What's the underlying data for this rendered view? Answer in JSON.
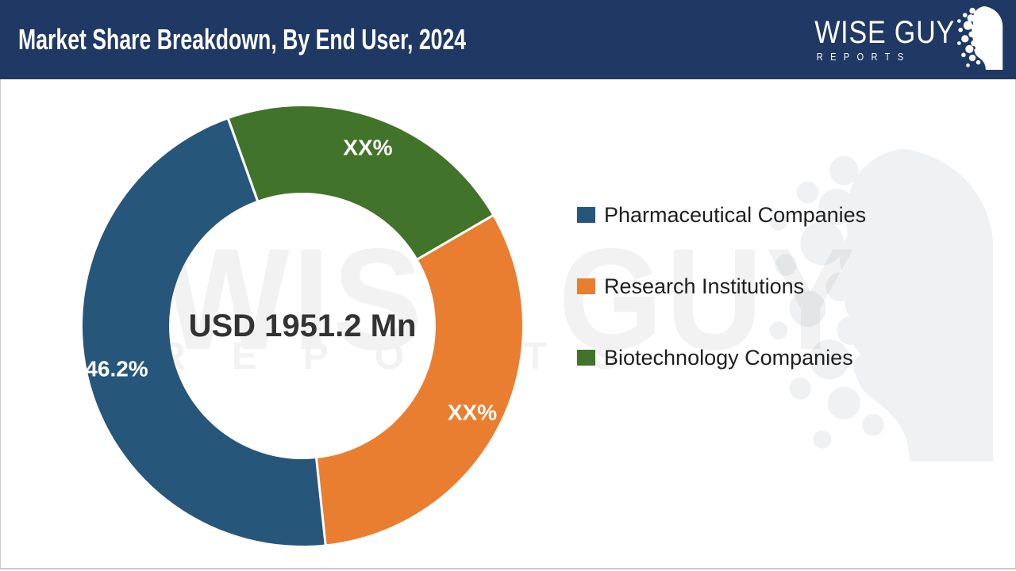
{
  "header": {
    "title": "Market Share Breakdown, By End User, 2024"
  },
  "logo": {
    "line1": "WISE GUY",
    "line2": "REPORTS"
  },
  "watermark": {
    "line1": "WISE GUY",
    "line2": "REPORTS"
  },
  "chart_data": {
    "type": "pie",
    "subtype": "donut",
    "title": "Market Share Breakdown, By End User, 2024",
    "center_label": "USD 1951.2 Mn",
    "legend_position": "right",
    "segments": [
      {
        "name": "Pharmaceutical Companies",
        "value_label": "46.2%",
        "share_pct": 46.2,
        "color": "#27567b"
      },
      {
        "name": "Research Institutions",
        "value_label": "XX%",
        "share_pct": 31.7,
        "color": "#ea7e30"
      },
      {
        "name": "Biotechnology Companies",
        "value_label": "XX%",
        "share_pct": 22.1,
        "color": "#42732a"
      }
    ]
  },
  "colors": {
    "header_bg": "#1f3864",
    "slice_separator": "#ffffff",
    "center_text": "#333333",
    "legend_text": "#1f1f1f",
    "watermark": "#f2f2f2"
  }
}
